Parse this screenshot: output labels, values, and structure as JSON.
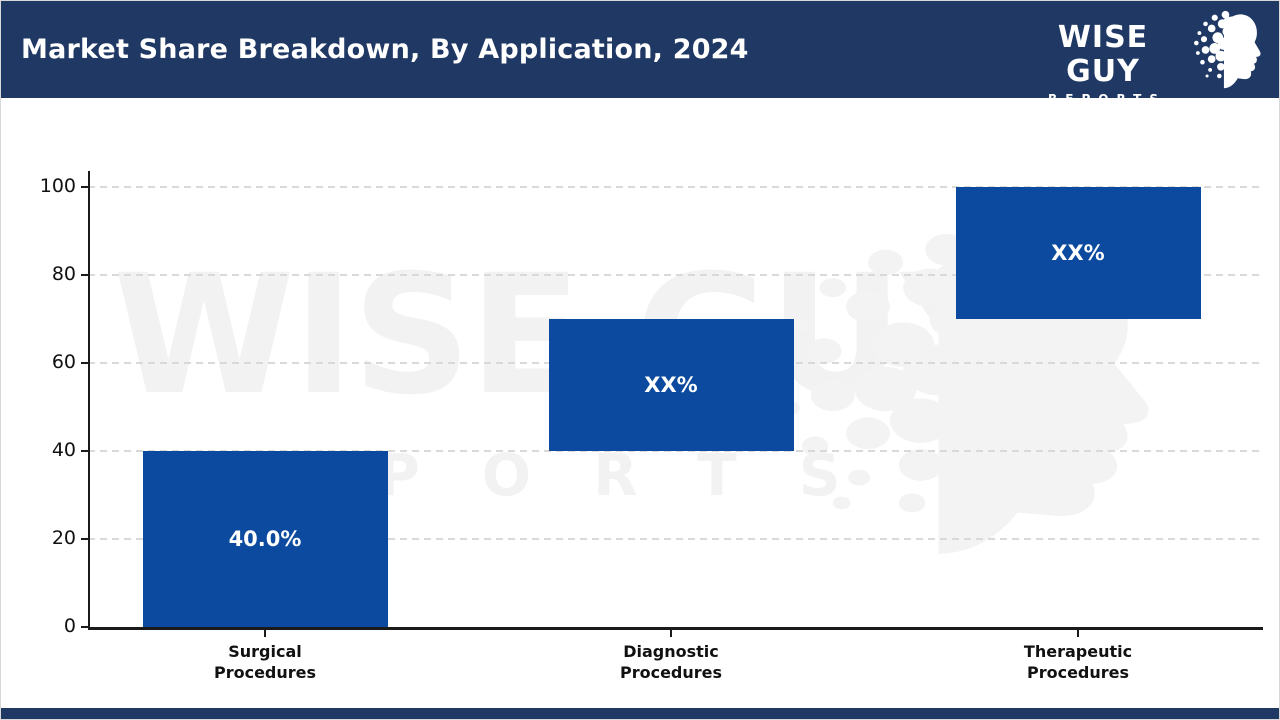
{
  "header": {
    "title": "Market Share Breakdown, By Application, 2024",
    "logo": {
      "line1": "WISE GUY",
      "line2": "REPORTS"
    },
    "bg_color": "#1f3864",
    "text_color": "#ffffff"
  },
  "watermark": {
    "line1": "WISE GUY",
    "line2": "REPORTS"
  },
  "footer": {
    "bg_color": "#1f3864"
  },
  "chart_data": {
    "type": "bar",
    "variant": "floating-segment-waterfall",
    "title": "Market Share Breakdown, By Application, 2024",
    "categories": [
      "Surgical Procedures",
      "Diagnostic Procedures",
      "Therapeutic Procedures"
    ],
    "bars": [
      {
        "category": "Surgical Procedures",
        "start": 0,
        "end": 40,
        "label": "40.0%"
      },
      {
        "category": "Diagnostic Procedures",
        "start": 40,
        "end": 70,
        "label": "XX%"
      },
      {
        "category": "Therapeutic Procedures",
        "start": 70,
        "end": 100,
        "label": "XX%"
      }
    ],
    "yticks": [
      0,
      20,
      40,
      60,
      80,
      100
    ],
    "ylim": [
      0,
      100
    ],
    "xlabel": "",
    "ylabel": "",
    "grid": "horizontal-dashed",
    "legend": false,
    "bar_color": "#0b4a9e",
    "bar_label_color": "#ffffff",
    "gridline_color": "#d9d9d9",
    "axis_color": "#1a1a1a"
  }
}
